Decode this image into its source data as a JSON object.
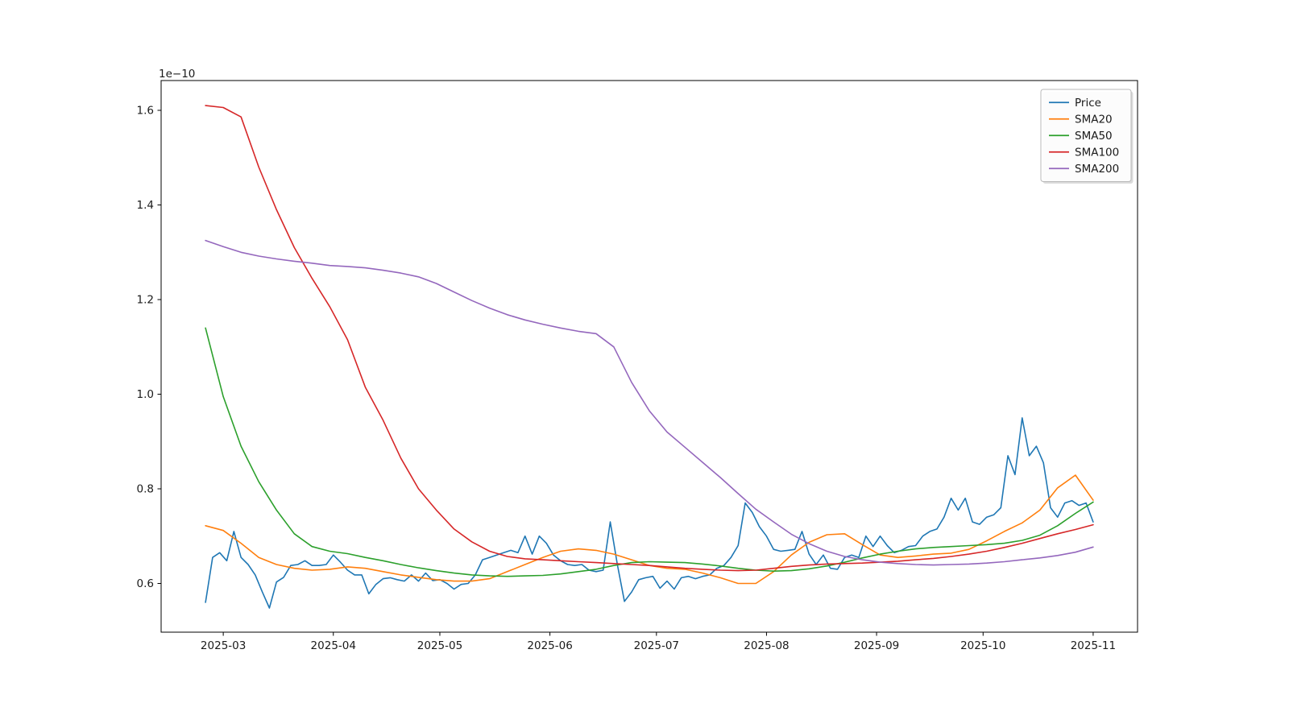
{
  "figure": {
    "background": "#ffffff",
    "axis_color": "#000000"
  },
  "chart_data": {
    "type": "line",
    "title": "",
    "xlabel": "",
    "ylabel": "",
    "offset_text": "1e−10",
    "grid": false,
    "x_unit": "days since 2025-02-24",
    "xlim": [
      -12.5,
      262.5
    ],
    "ylim": [
      0.497,
      1.663
    ],
    "x_ticks": {
      "positions": [
        5,
        36,
        66,
        97,
        127,
        158,
        189,
        219,
        250
      ],
      "labels": [
        "2025-03",
        "2025-04",
        "2025-05",
        "2025-06",
        "2025-07",
        "2025-08",
        "2025-09",
        "2025-10",
        "2025-11"
      ]
    },
    "y_ticks": {
      "positions": [
        0.6,
        0.8,
        1.0,
        1.2,
        1.4,
        1.6
      ],
      "labels": [
        "0.6",
        "0.8",
        "1.0",
        "1.2",
        "1.4",
        "1.6"
      ]
    },
    "legend": {
      "position": "upper right",
      "entries": [
        "Price",
        "SMA20",
        "SMA50",
        "SMA100",
        "SMA200"
      ]
    },
    "series": [
      {
        "name": "Price",
        "color": "#1f77b4",
        "x_start": 0,
        "x_step": 2,
        "values": [
          0.56,
          0.655,
          0.665,
          0.648,
          0.71,
          0.655,
          0.64,
          0.618,
          0.582,
          0.548,
          0.603,
          0.613,
          0.638,
          0.64,
          0.648,
          0.638,
          0.638,
          0.64,
          0.66,
          0.645,
          0.628,
          0.618,
          0.618,
          0.578,
          0.598,
          0.61,
          0.612,
          0.608,
          0.605,
          0.618,
          0.605,
          0.622,
          0.606,
          0.608,
          0.6,
          0.588,
          0.598,
          0.6,
          0.618,
          0.65,
          0.655,
          0.66,
          0.665,
          0.67,
          0.665,
          0.7,
          0.662,
          0.7,
          0.685,
          0.66,
          0.648,
          0.64,
          0.638,
          0.64,
          0.628,
          0.625,
          0.628,
          0.73,
          0.64,
          0.562,
          0.582,
          0.608,
          0.612,
          0.615,
          0.59,
          0.605,
          0.588,
          0.612,
          0.615,
          0.61,
          0.615,
          0.618,
          0.632,
          0.638,
          0.655,
          0.68,
          0.77,
          0.75,
          0.72,
          0.7,
          0.672,
          0.668,
          0.67,
          0.672,
          0.71,
          0.662,
          0.64,
          0.66,
          0.632,
          0.63,
          0.655,
          0.66,
          0.655,
          0.7,
          0.678,
          0.7,
          0.68,
          0.665,
          0.67,
          0.678,
          0.68,
          0.7,
          0.71,
          0.715,
          0.74,
          0.78,
          0.755,
          0.78,
          0.73,
          0.725,
          0.74,
          0.745,
          0.76,
          0.87,
          0.83,
          0.95,
          0.87,
          0.89,
          0.855,
          0.76,
          0.74,
          0.77,
          0.775,
          0.765,
          0.77,
          0.73
        ]
      },
      {
        "name": "SMA20",
        "color": "#ff7f0e",
        "x_start": 0,
        "x_step": 5,
        "values": [
          0.722,
          0.712,
          0.685,
          0.655,
          0.64,
          0.632,
          0.628,
          0.63,
          0.635,
          0.632,
          0.625,
          0.618,
          0.613,
          0.608,
          0.605,
          0.605,
          0.61,
          0.625,
          0.64,
          0.655,
          0.668,
          0.673,
          0.67,
          0.662,
          0.65,
          0.638,
          0.632,
          0.63,
          0.622,
          0.612,
          0.6,
          0.6,
          0.625,
          0.66,
          0.687,
          0.703,
          0.705,
          0.682,
          0.66,
          0.655,
          0.658,
          0.662,
          0.664,
          0.672,
          0.69,
          0.71,
          0.728,
          0.755,
          0.802,
          0.829,
          0.776
        ]
      },
      {
        "name": "SMA50",
        "color": "#2ca02c",
        "x_start": 0,
        "x_step": 5,
        "values": [
          1.14,
          0.995,
          0.89,
          0.815,
          0.755,
          0.705,
          0.678,
          0.668,
          0.663,
          0.655,
          0.648,
          0.64,
          0.633,
          0.627,
          0.622,
          0.618,
          0.616,
          0.615,
          0.616,
          0.617,
          0.62,
          0.625,
          0.63,
          0.638,
          0.644,
          0.646,
          0.645,
          0.644,
          0.641,
          0.637,
          0.632,
          0.628,
          0.626,
          0.627,
          0.631,
          0.637,
          0.645,
          0.654,
          0.662,
          0.668,
          0.673,
          0.676,
          0.678,
          0.68,
          0.682,
          0.685,
          0.691,
          0.702,
          0.722,
          0.748,
          0.772
        ]
      },
      {
        "name": "SMA100",
        "color": "#d62728",
        "x_start": 0,
        "x_step": 5,
        "values": [
          1.61,
          1.606,
          1.586,
          1.48,
          1.39,
          1.31,
          1.245,
          1.185,
          1.115,
          1.015,
          0.945,
          0.865,
          0.8,
          0.755,
          0.715,
          0.688,
          0.668,
          0.657,
          0.652,
          0.65,
          0.648,
          0.646,
          0.644,
          0.642,
          0.64,
          0.638,
          0.635,
          0.632,
          0.63,
          0.628,
          0.627,
          0.628,
          0.632,
          0.636,
          0.639,
          0.641,
          0.642,
          0.643,
          0.645,
          0.647,
          0.65,
          0.653,
          0.657,
          0.662,
          0.668,
          0.676,
          0.685,
          0.695,
          0.705,
          0.714,
          0.724
        ]
      },
      {
        "name": "SMA200",
        "color": "#9467bd",
        "x_start": 0,
        "x_step": 5,
        "values": [
          1.325,
          1.312,
          1.3,
          1.292,
          1.286,
          1.281,
          1.277,
          1.272,
          1.27,
          1.267,
          1.262,
          1.256,
          1.248,
          1.234,
          1.216,
          1.198,
          1.182,
          1.168,
          1.157,
          1.148,
          1.14,
          1.133,
          1.128,
          1.1,
          1.025,
          0.965,
          0.92,
          0.888,
          0.856,
          0.824,
          0.79,
          0.757,
          0.73,
          0.704,
          0.684,
          0.668,
          0.657,
          0.65,
          0.645,
          0.642,
          0.64,
          0.639,
          0.64,
          0.641,
          0.643,
          0.646,
          0.65,
          0.654,
          0.659,
          0.666,
          0.677
        ]
      }
    ]
  }
}
